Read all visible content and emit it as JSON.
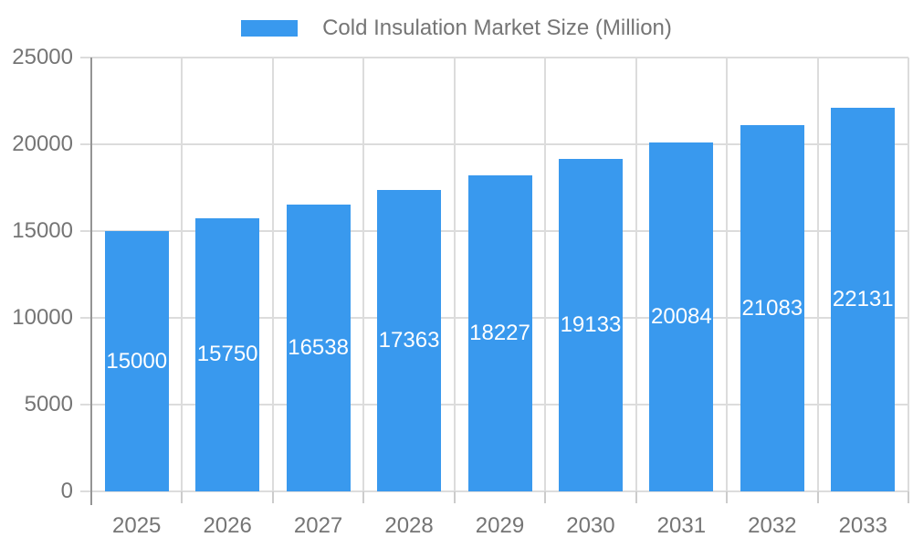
{
  "chart_data": {
    "type": "bar",
    "title": "Cold Insulation Market Size (Million)",
    "categories": [
      "2025",
      "2026",
      "2027",
      "2028",
      "2029",
      "2030",
      "2031",
      "2032",
      "2033"
    ],
    "series": [
      {
        "name": "Cold Insulation Market Size (Million)",
        "values": [
          15000,
          15750,
          16538,
          17363,
          18227,
          19133,
          20084,
          21083,
          22131
        ]
      }
    ],
    "xlabel": "",
    "ylabel": "",
    "ylim": [
      0,
      25000
    ],
    "yticks": [
      0,
      5000,
      10000,
      15000,
      20000,
      25000
    ],
    "grid": true,
    "legend_position": "top",
    "bar_labels_inside": true,
    "colors": {
      "bar": "#3999EE",
      "bar_label": "#ffffff",
      "axis_text": "#757575",
      "gridline": "#dcdcdc",
      "axis_line": "#949494",
      "tick": "#cccccc",
      "background": "#ffffff"
    }
  }
}
